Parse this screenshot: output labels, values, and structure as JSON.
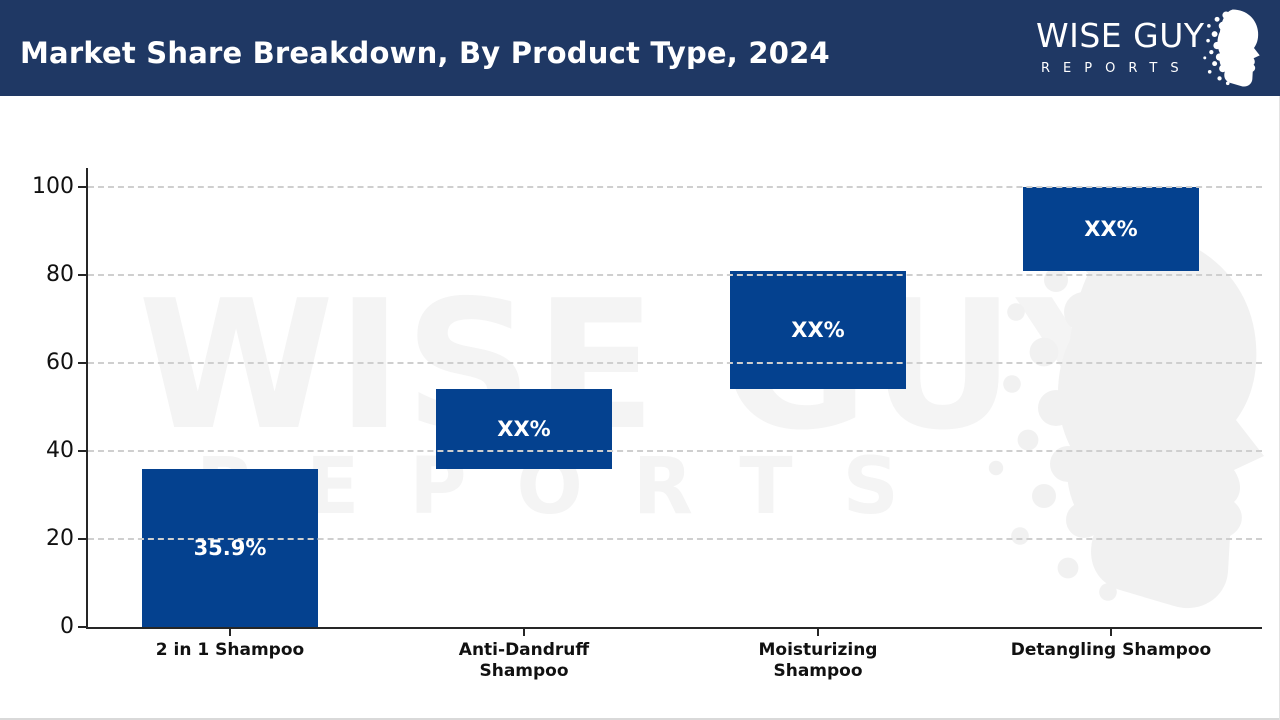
{
  "header": {
    "title": "Market Share Breakdown, By Product Type, 2024",
    "bg_color": "#1f3864",
    "logo": {
      "line1": "WISE GUY",
      "line2": "REPORTS"
    }
  },
  "watermark": {
    "line1": "WISE GUY",
    "line2": "REPORTS"
  },
  "chart_data": {
    "type": "bar",
    "subtype": "floating-waterfall",
    "title": "Market Share Breakdown, By Product Type, 2024",
    "categories": [
      "2 in 1 Shampoo",
      "Anti-Dandruff Shampoo",
      "Moisturizing Shampoo",
      "Detangling Shampoo"
    ],
    "categories_lines": [
      [
        "2 in 1 Shampoo"
      ],
      [
        "Anti-Dandruff",
        "Shampoo"
      ],
      [
        "Moisturizing",
        "Shampoo"
      ],
      [
        "Detangling Shampoo"
      ]
    ],
    "segments": [
      {
        "category": "2 in 1 Shampoo",
        "start": 0,
        "end": 35.9,
        "label": "35.9%"
      },
      {
        "category": "Anti-Dandruff Shampoo",
        "start": 35.9,
        "end": 54.1,
        "label": "XX%"
      },
      {
        "category": "Moisturizing Shampoo",
        "start": 54.1,
        "end": 80.9,
        "label": "XX%"
      },
      {
        "category": "Detangling Shampoo",
        "start": 80.9,
        "end": 100,
        "label": "XX%"
      }
    ],
    "y_ticks": [
      0,
      20,
      40,
      60,
      80,
      100
    ],
    "y_tick_labels": [
      "0",
      "20",
      "40",
      "60",
      "80",
      "100"
    ],
    "ylim": [
      0,
      105
    ],
    "xlabel": "",
    "ylabel": "",
    "grid": "horizontal-dashed",
    "legend": "none",
    "colors": {
      "bar": "#04418f",
      "header_bg": "#1f3864",
      "grid": "#cfcfcf",
      "axis": "#262626",
      "bar_label_text": "#ffffff",
      "watermark": "#f2f2f2"
    }
  }
}
